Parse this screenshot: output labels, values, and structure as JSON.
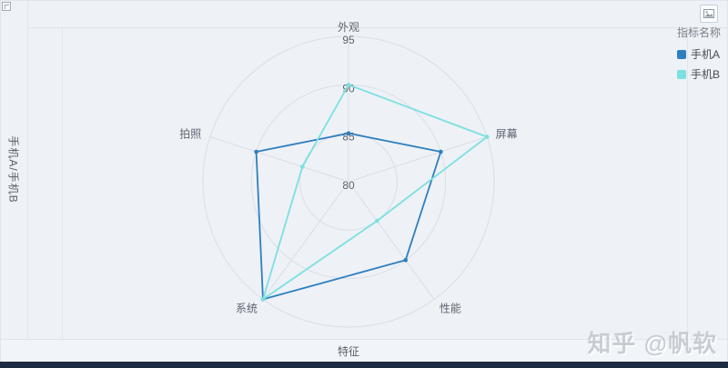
{
  "window": {
    "icons": {
      "top_left": "collapse-icon",
      "top_right": "export-image-icon"
    }
  },
  "axes": {
    "left_title": "手机A/手机B",
    "bottom_title": "特征"
  },
  "legend": {
    "title": "指标名称",
    "items": [
      "手机A",
      "手机B"
    ]
  },
  "watermark": "知乎 @帆软",
  "colors": {
    "background": "#eef1f6",
    "grid_line": "#dadfe6",
    "axis_label": "#5f6670",
    "tick_label": "#5c6269",
    "series_a": "#2e7fbf",
    "series_b": "#7ce0e2",
    "bottom_bar": "#1d2c40"
  },
  "chart_data": {
    "type": "radar",
    "title": "",
    "categories": [
      "外观",
      "屏幕",
      "性能",
      "系统",
      "拍照"
    ],
    "series": [
      {
        "name": "手机A",
        "color": "#2e7fbf",
        "values": [
          85,
          90,
          90,
          95,
          90
        ]
      },
      {
        "name": "手机B",
        "color": "#7ce0e2",
        "values": [
          90,
          95,
          85,
          95,
          85
        ]
      }
    ],
    "radial_axis": {
      "min": 80,
      "max": 95,
      "ticks": [
        80,
        85,
        90,
        95
      ]
    },
    "grid": "circular",
    "legend_position": "top-right",
    "fill": false
  }
}
